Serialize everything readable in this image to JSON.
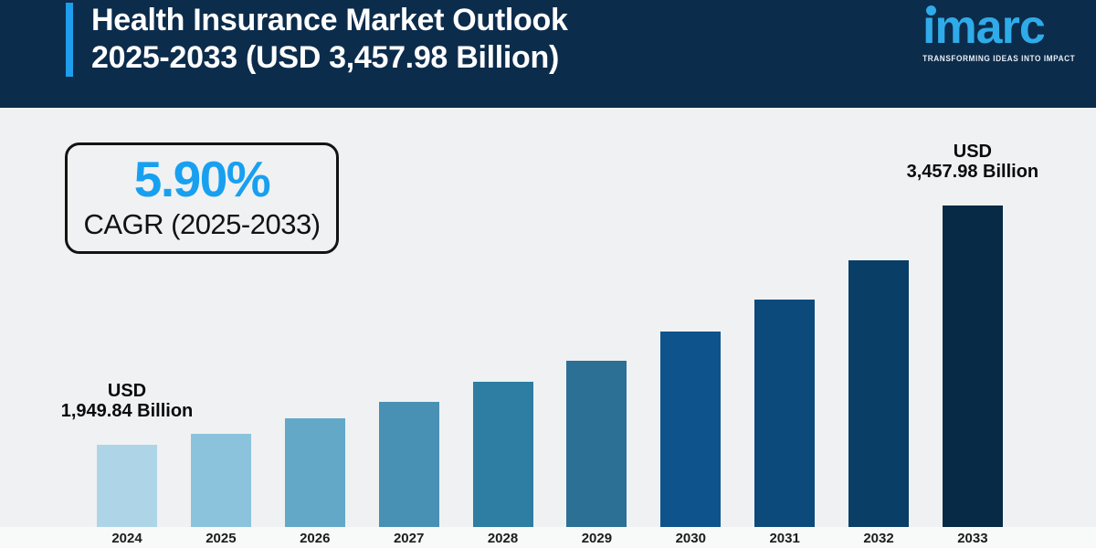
{
  "page": {
    "bg": "#f0f1f2"
  },
  "header": {
    "bg": "#0c2c4c",
    "accent_color": "#1f9ded",
    "title_line1": "Health Insurance Market Outlook",
    "title_line2": "2025-2033 (USD 3,457.98 Billion)",
    "logo": {
      "wordmark": "imarc",
      "tagline": "TRANSFORMING IDEAS INTO IMPACT",
      "color": "#2fabe9"
    }
  },
  "cagr_box": {
    "value": "5.90%",
    "label": "CAGR (2025-2033)",
    "value_color": "#18a0f0"
  },
  "chart_data": {
    "type": "bar",
    "title": "Health Insurance Market Outlook 2025-2033 (USD 3,457.98 Billion)",
    "unit": "USD Billion",
    "categories": [
      "2024",
      "2025",
      "2026",
      "2027",
      "2028",
      "2029",
      "2030",
      "2031",
      "2032",
      "2033"
    ],
    "values": [
      1949.84,
      2018.9,
      2116.8,
      2220.4,
      2347.0,
      2479.4,
      2663.6,
      2865.1,
      3112.6,
      3457.98
    ],
    "labeled_values_note": "Only 2024 and 2033 carry data labels; intermediate values estimated from bar heights",
    "bar_colors": [
      "#aed5e7",
      "#8cc3dc",
      "#64a8c8",
      "#4991b4",
      "#2e7da3",
      "#2d7095",
      "#0f538c",
      "#0d4a7c",
      "#093e66",
      "#072a47"
    ],
    "value_labels": [
      {
        "index": 0,
        "line1": "USD",
        "line2": "1,949.84 Billion"
      },
      {
        "index": 9,
        "line1": "USD",
        "line2": "3,457.98 Billion"
      }
    ],
    "xlabel": "",
    "ylabel": "",
    "y_axis": "hidden",
    "grid": false,
    "legend": false
  }
}
